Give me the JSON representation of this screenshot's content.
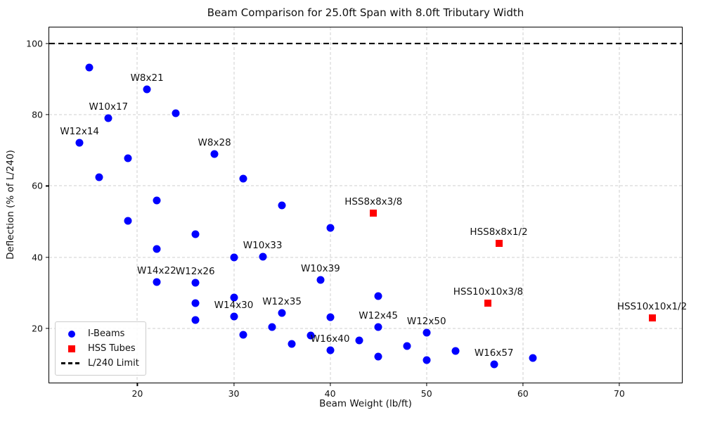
{
  "chart_data": {
    "type": "scatter",
    "title": "Beam Comparison for 25.0ft Span with 8.0ft Tributary Width",
    "xlabel": "Beam Weight (lb/ft)",
    "ylabel": "Deflection (% of L/240)",
    "xlim": [
      10.85,
      76.5
    ],
    "ylim": [
      4.8,
      104.5
    ],
    "x_ticks": [
      20,
      30,
      40,
      50,
      60,
      70
    ],
    "y_ticks": [
      20,
      40,
      60,
      80,
      100
    ],
    "grid": true,
    "limit_line": {
      "y": 100,
      "label": "L/240 Limit",
      "color": "#000000",
      "style": "dashed"
    },
    "legend": {
      "position": "lower left",
      "entries": [
        {
          "label": "I-Beams",
          "marker": "circle",
          "color": "#0000ff"
        },
        {
          "label": "HSS Tubes",
          "marker": "square",
          "color": "#ff0000"
        },
        {
          "label": "L/240 Limit",
          "marker": "dashed-line",
          "color": "#000000"
        }
      ]
    },
    "series": [
      {
        "name": "I-Beams",
        "marker": "circle",
        "color": "#0000ff",
        "points": [
          {
            "x": 15,
            "y": 93.3
          },
          {
            "x": 21,
            "y": 87.2,
            "label": "W8x21"
          },
          {
            "x": 24,
            "y": 80.4
          },
          {
            "x": 17,
            "y": 79.1,
            "label": "W10x17"
          },
          {
            "x": 14,
            "y": 72.2,
            "label": "W12x14"
          },
          {
            "x": 28,
            "y": 68.9,
            "label": "W8x28"
          },
          {
            "x": 19,
            "y": 67.7
          },
          {
            "x": 16,
            "y": 62.5
          },
          {
            "x": 31,
            "y": 62.0
          },
          {
            "x": 22,
            "y": 55.9
          },
          {
            "x": 35,
            "y": 54.5
          },
          {
            "x": 19,
            "y": 50.2
          },
          {
            "x": 40,
            "y": 48.3
          },
          {
            "x": 26,
            "y": 46.4
          },
          {
            "x": 22,
            "y": 42.3
          },
          {
            "x": 33,
            "y": 40.2,
            "label": "W10x33"
          },
          {
            "x": 30,
            "y": 40.0
          },
          {
            "x": 39,
            "y": 33.7,
            "label": "W10x39"
          },
          {
            "x": 22,
            "y": 33.1,
            "label": "W14x22"
          },
          {
            "x": 26,
            "y": 32.9,
            "label": "W12x26"
          },
          {
            "x": 45,
            "y": 29.0
          },
          {
            "x": 30,
            "y": 28.7
          },
          {
            "x": 26,
            "y": 27.2
          },
          {
            "x": 35,
            "y": 24.3,
            "label": "W12x35"
          },
          {
            "x": 30,
            "y": 23.4,
            "label": "W14x30"
          },
          {
            "x": 40,
            "y": 23.2
          },
          {
            "x": 26,
            "y": 22.3
          },
          {
            "x": 45,
            "y": 20.4,
            "label": "W12x45"
          },
          {
            "x": 34,
            "y": 20.3
          },
          {
            "x": 50,
            "y": 18.9,
            "label": "W12x50"
          },
          {
            "x": 31,
            "y": 18.3
          },
          {
            "x": 38,
            "y": 18.1
          },
          {
            "x": 43,
            "y": 16.6
          },
          {
            "x": 36,
            "y": 15.6
          },
          {
            "x": 48,
            "y": 15.0
          },
          {
            "x": 40,
            "y": 13.8,
            "label": "W16x40"
          },
          {
            "x": 53,
            "y": 13.7
          },
          {
            "x": 45,
            "y": 12.2
          },
          {
            "x": 61,
            "y": 11.8
          },
          {
            "x": 50,
            "y": 11.1
          },
          {
            "x": 57,
            "y": 9.9,
            "label": "W16x57"
          }
        ]
      },
      {
        "name": "HSS Tubes",
        "marker": "square",
        "color": "#ff0000",
        "points": [
          {
            "x": 44.5,
            "y": 52.4,
            "label": "HSS8x8x3/8"
          },
          {
            "x": 57.5,
            "y": 43.9,
            "label": "HSS8x8x1/2"
          },
          {
            "x": 56.4,
            "y": 27.1,
            "label": "HSS10x10x3/8"
          },
          {
            "x": 73.4,
            "y": 22.9,
            "label": "HSS10x10x1/2"
          }
        ]
      }
    ]
  }
}
